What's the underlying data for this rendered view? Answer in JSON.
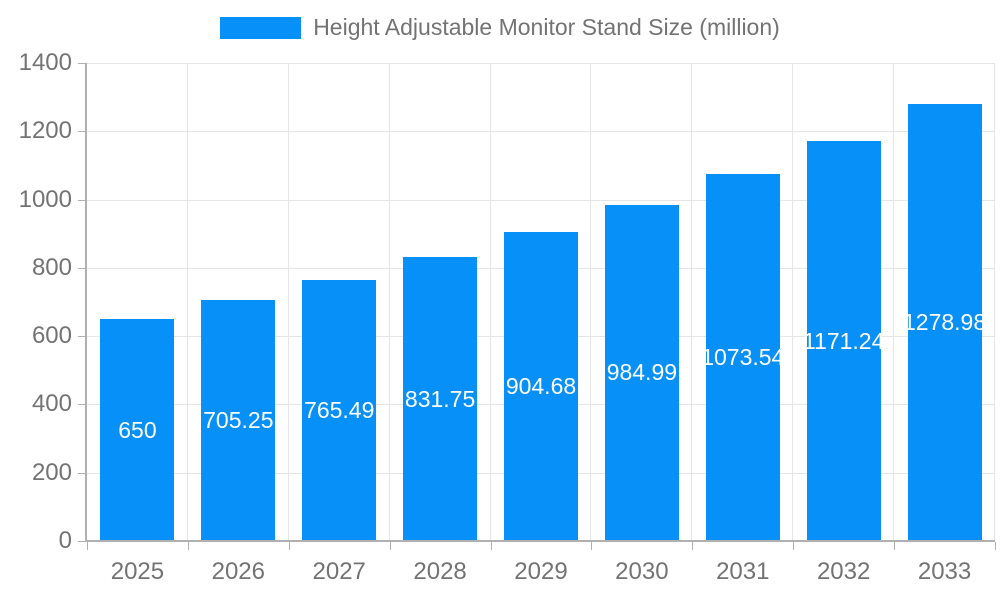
{
  "legend": {
    "label": "Height Adjustable Monitor Stand Size (million)"
  },
  "chart_data": {
    "type": "bar",
    "title": "Height Adjustable Monitor Stand Size (million)",
    "categories": [
      "2025",
      "2026",
      "2027",
      "2028",
      "2029",
      "2030",
      "2031",
      "2032",
      "2033"
    ],
    "values": [
      650,
      705.25,
      765.49,
      831.75,
      904.68,
      984.99,
      1073.54,
      1171.24,
      1278.98
    ],
    "value_labels": [
      "650",
      "705.25",
      "765.49",
      "831.75",
      "904.68",
      "984.99",
      "1073.54",
      "1171.24",
      "1278.98"
    ],
    "xlabel": "",
    "ylabel": "",
    "ylim": [
      0,
      1400
    ],
    "yticks": [
      0,
      200,
      400,
      600,
      800,
      1000,
      1200,
      1400
    ],
    "grid": true,
    "legend_position": "top-center",
    "colors": {
      "bar": "#0690f8",
      "value_label": "#ffffff",
      "grid": "#e5e5e5",
      "axis": "#b0b0b0",
      "text": "#737373"
    }
  }
}
